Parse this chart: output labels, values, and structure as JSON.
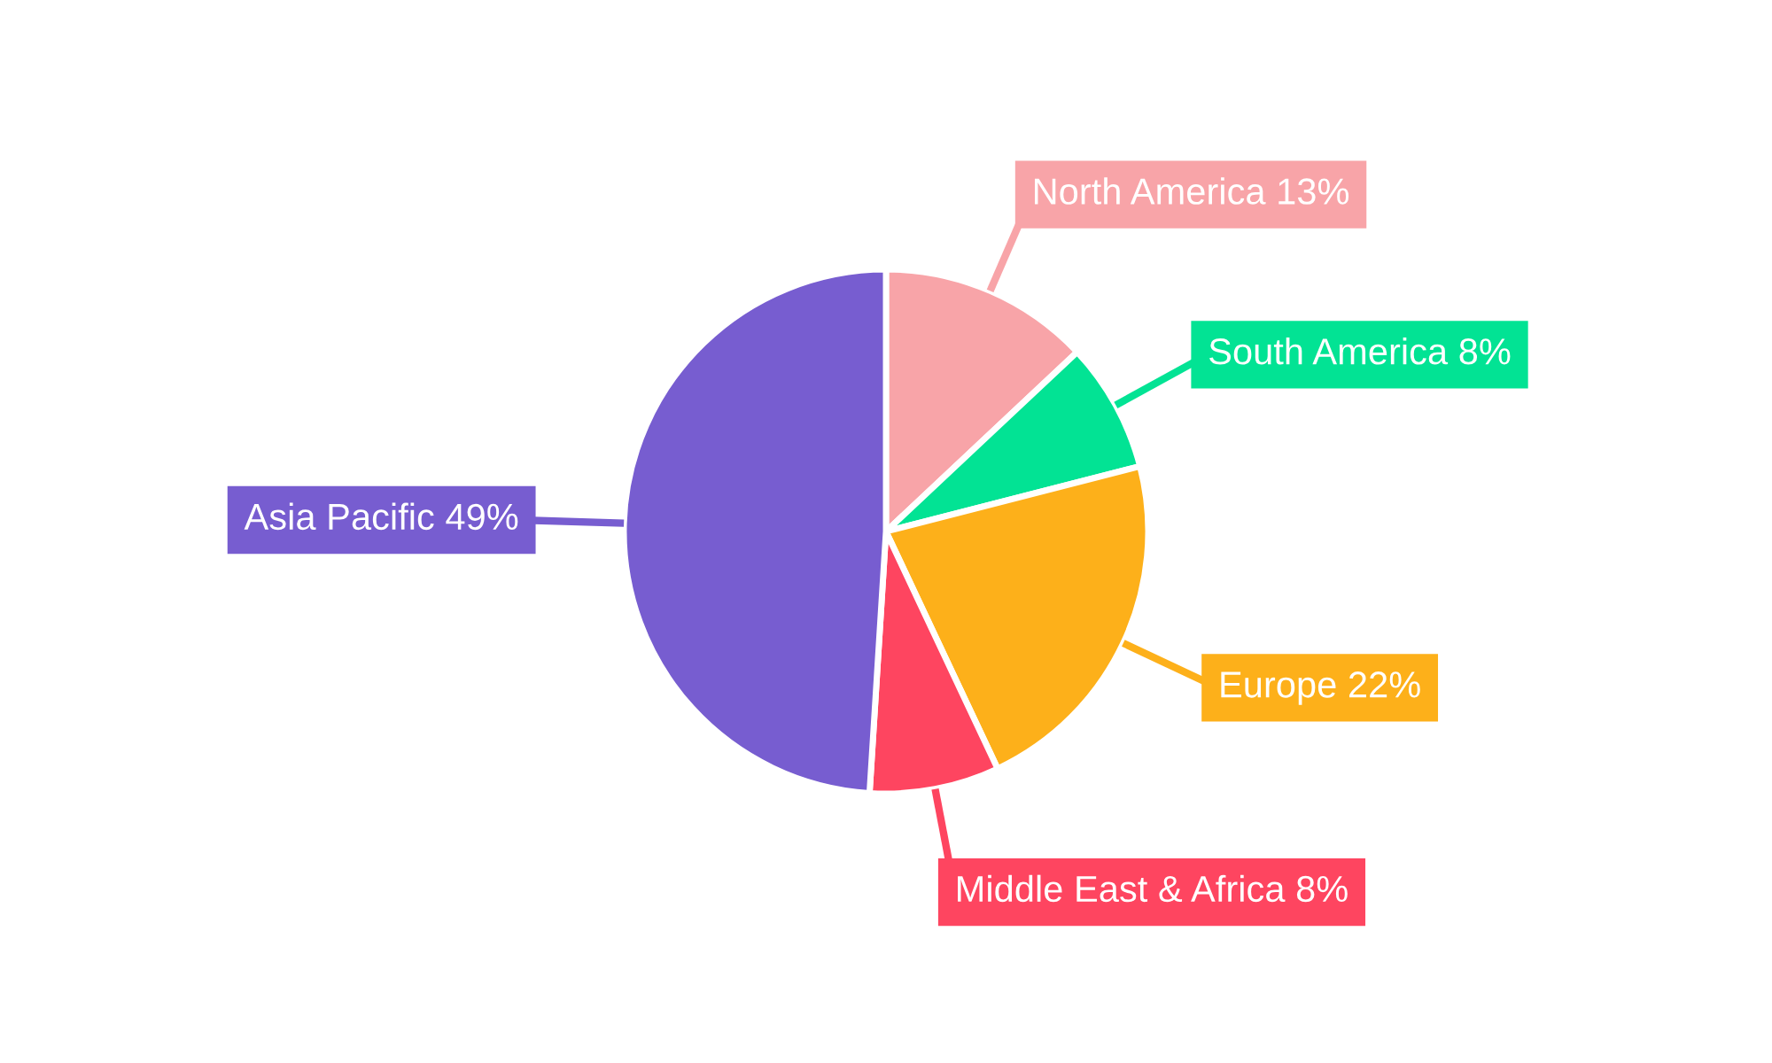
{
  "chart_data": {
    "type": "pie",
    "categories": [
      "North America",
      "South America",
      "Europe",
      "Middle East & Africa",
      "Asia Pacific"
    ],
    "values": [
      13,
      8,
      22,
      8,
      49
    ],
    "value_labels": [
      "13%",
      "8%",
      "22%",
      "8%",
      "49%"
    ],
    "colors": [
      "#f8a4a8",
      "#02e394",
      "#fdb01a",
      "#fe4560",
      "#775dd0"
    ]
  }
}
